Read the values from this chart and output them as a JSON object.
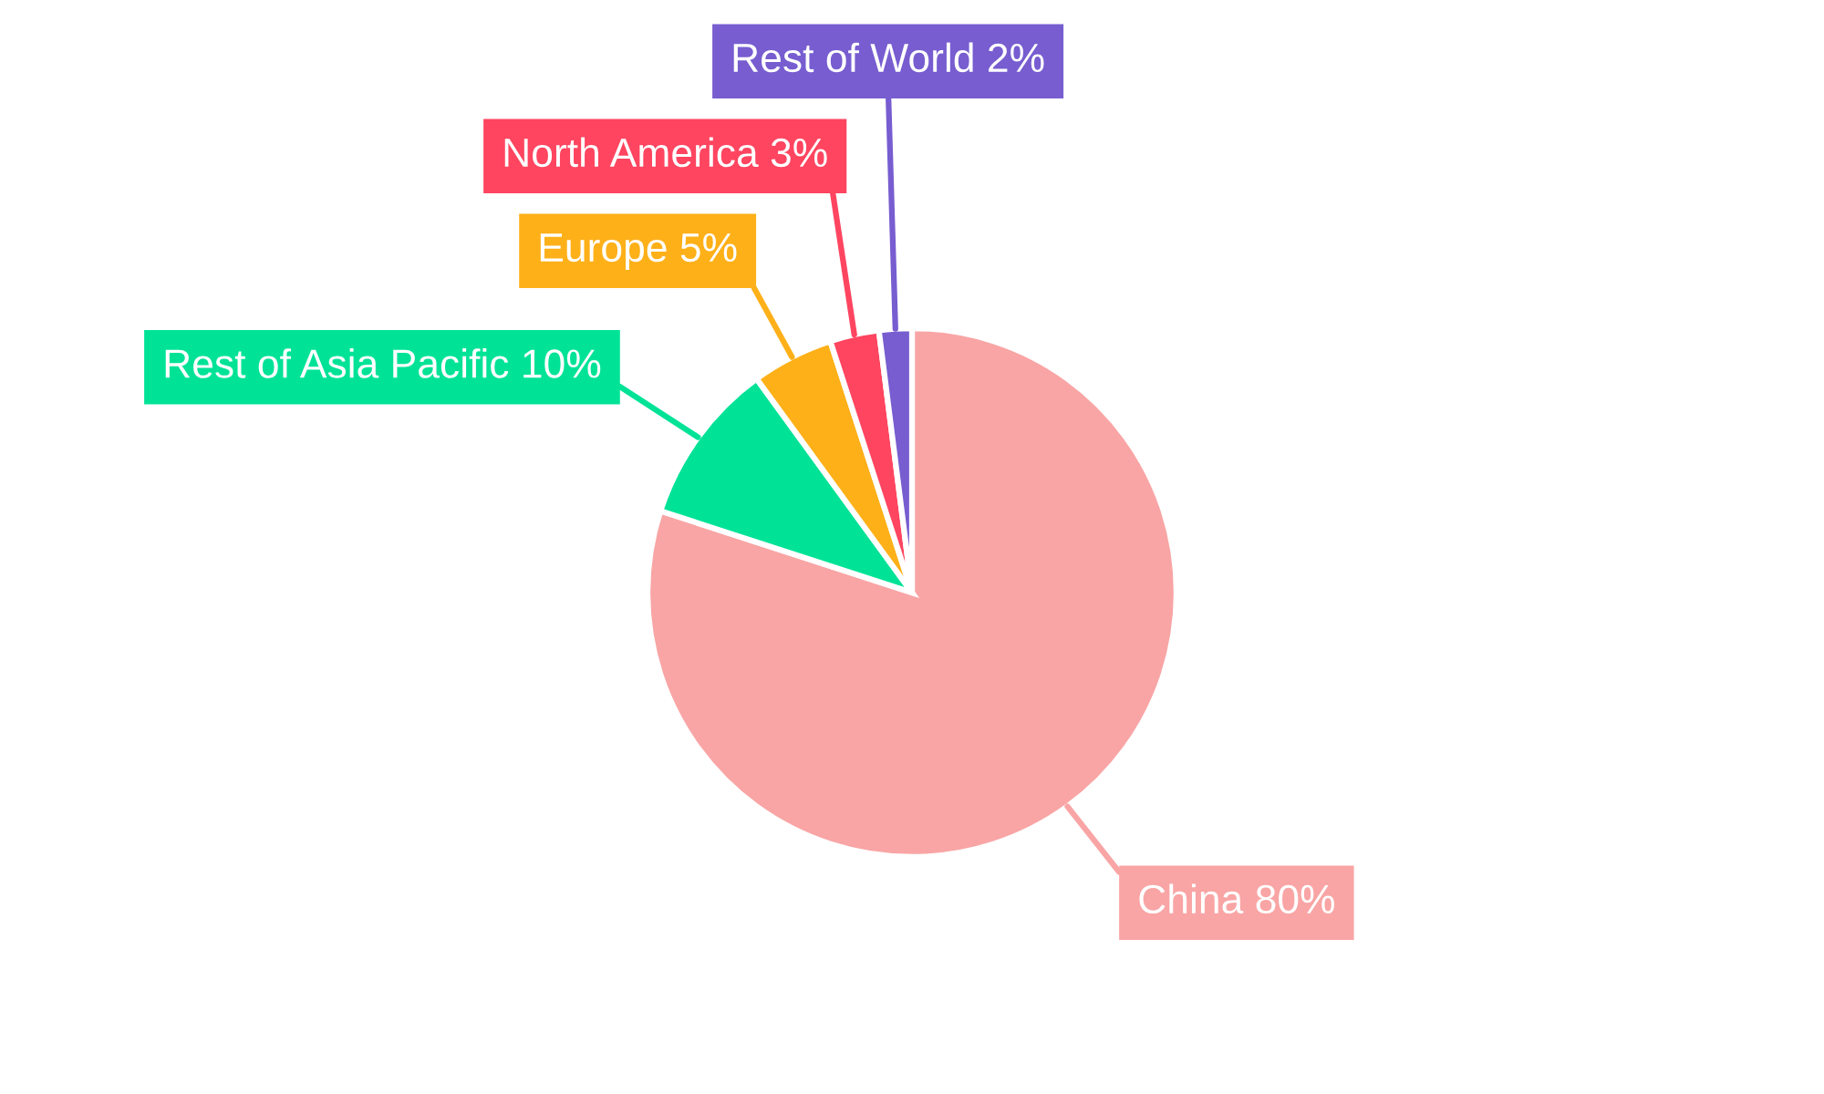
{
  "chart_data": {
    "type": "pie",
    "categories": [
      "China",
      "Rest of Asia Pacific",
      "Europe",
      "North America",
      "Rest of World"
    ],
    "values": [
      80,
      10,
      5,
      3,
      2
    ],
    "value_labels": [
      "80%",
      "10%",
      "5%",
      "3%",
      "2%"
    ],
    "colors": [
      "#f9a5a5",
      "#00e396",
      "#feb019",
      "#ff4560",
      "#775dd0"
    ]
  }
}
